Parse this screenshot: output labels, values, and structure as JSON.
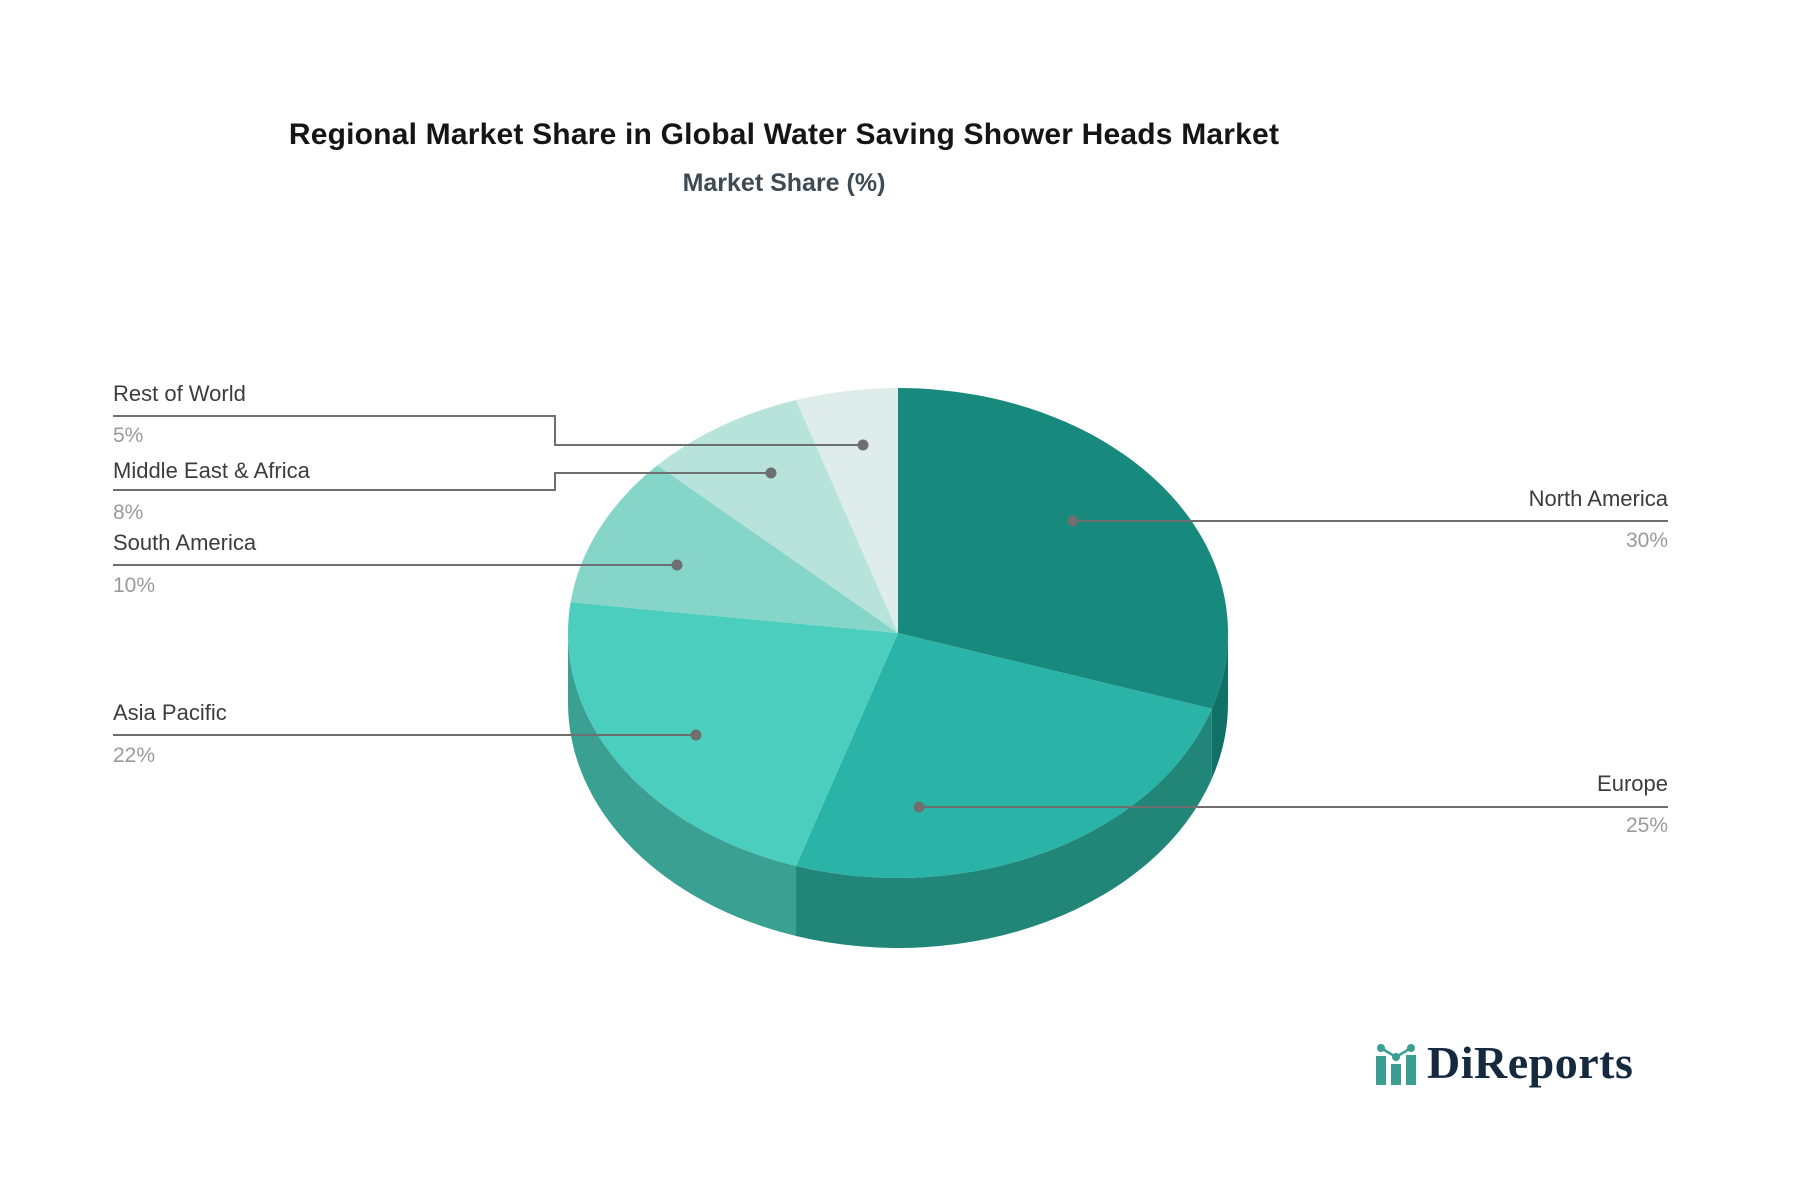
{
  "header": {
    "title": "Regional Market Share in Global Water Saving Shower Heads Market",
    "subtitle": "Market Share (%)"
  },
  "logo": {
    "text": "DiReports",
    "icon": "bar-trend-icon",
    "icon_color": "#3b9e92",
    "text_color": "#152a3e"
  },
  "chart_data": {
    "type": "pie",
    "title": "Regional Market Share in Global Water Saving Shower Heads Market",
    "subtitle": "Market Share (%)",
    "style": "3d-pie",
    "start_angle_deg": 0,
    "direction": "clockwise-from-top",
    "legend": "none",
    "connector_color": "#6f6f6f",
    "label_color": "#3c3c3c",
    "pct_color": "#9a9a9a",
    "slices": [
      {
        "id": "north-america",
        "label": "North America",
        "value": 30,
        "value_label": "30%",
        "color": "#17897d",
        "side_color": "#127166"
      },
      {
        "id": "europe",
        "label": "Europe",
        "value": 25,
        "value_label": "25%",
        "color": "#2ab4a7",
        "side_color": "#218578"
      },
      {
        "id": "asia-pacific",
        "label": "Asia Pacific",
        "value": 22,
        "value_label": "22%",
        "color": "#4ccebe",
        "side_color": "#39a092"
      },
      {
        "id": "south-america",
        "label": "South America",
        "value": 10,
        "value_label": "10%",
        "color": "#85d6c9",
        "side_color": "#68b0a5"
      },
      {
        "id": "middle-east-africa",
        "label": "Middle East & Africa",
        "value": 8,
        "value_label": "8%",
        "color": "#b7e3db",
        "side_color": "#93bcb4"
      },
      {
        "id": "rest-of-world",
        "label": "Rest of World",
        "value": 5,
        "value_label": "5%",
        "color": "#deede9",
        "side_color": "#b6c8c3"
      }
    ]
  }
}
